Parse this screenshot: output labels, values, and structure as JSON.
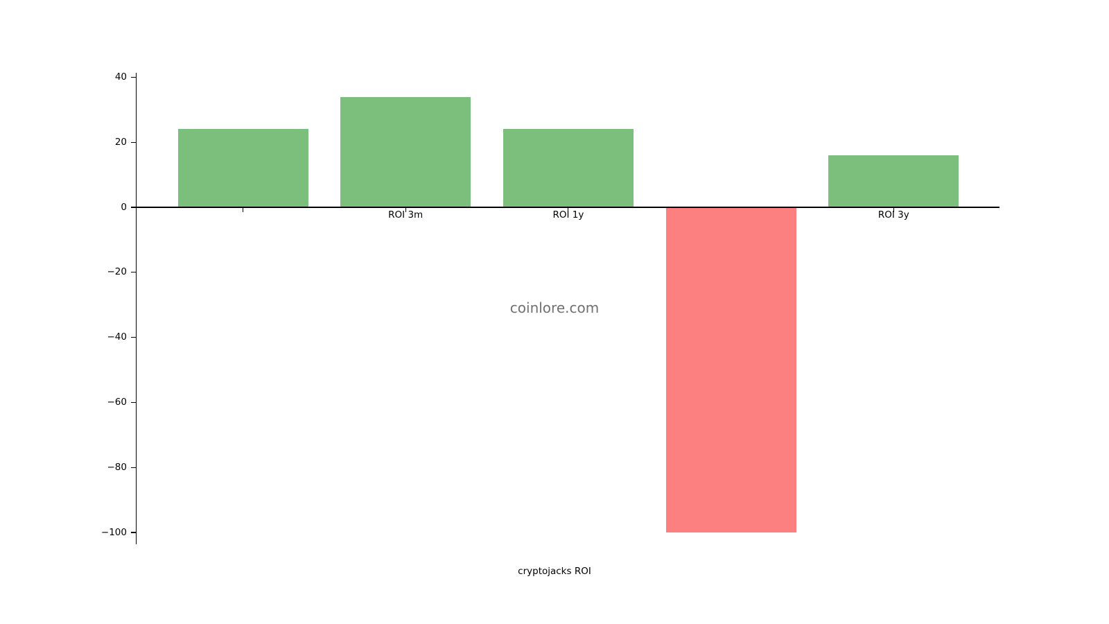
{
  "figure": {
    "background": "#ffffff",
    "watermark": "coinlore.com",
    "watermark_color": "#707070"
  },
  "chart_data": {
    "type": "bar",
    "title": "cryptojacks ROI",
    "categories": [
      "",
      "ROI 3m",
      "ROI 1y",
      "",
      "ROI 3y"
    ],
    "values": [
      24,
      34,
      24,
      -100,
      16
    ],
    "bar_colors": [
      "#7cbe7c",
      "#7cbe7c",
      "#7cbe7c",
      "#fd8080",
      "#7cbe7c"
    ],
    "positive_color": "#7cbe7c",
    "negative_color": "#fd8080",
    "xlabel": "",
    "ylabel": "",
    "yticks": [
      40,
      20,
      0,
      -20,
      -40,
      -60,
      -80,
      -100
    ],
    "ytick_labels": [
      "40",
      "20",
      "0",
      "−20",
      "−40",
      "−60",
      "−80",
      "−100"
    ],
    "ylim": [
      -104,
      41.5
    ],
    "grid": false,
    "legend_position": "none",
    "axis_color": "#000000",
    "text_color": "#000000"
  }
}
